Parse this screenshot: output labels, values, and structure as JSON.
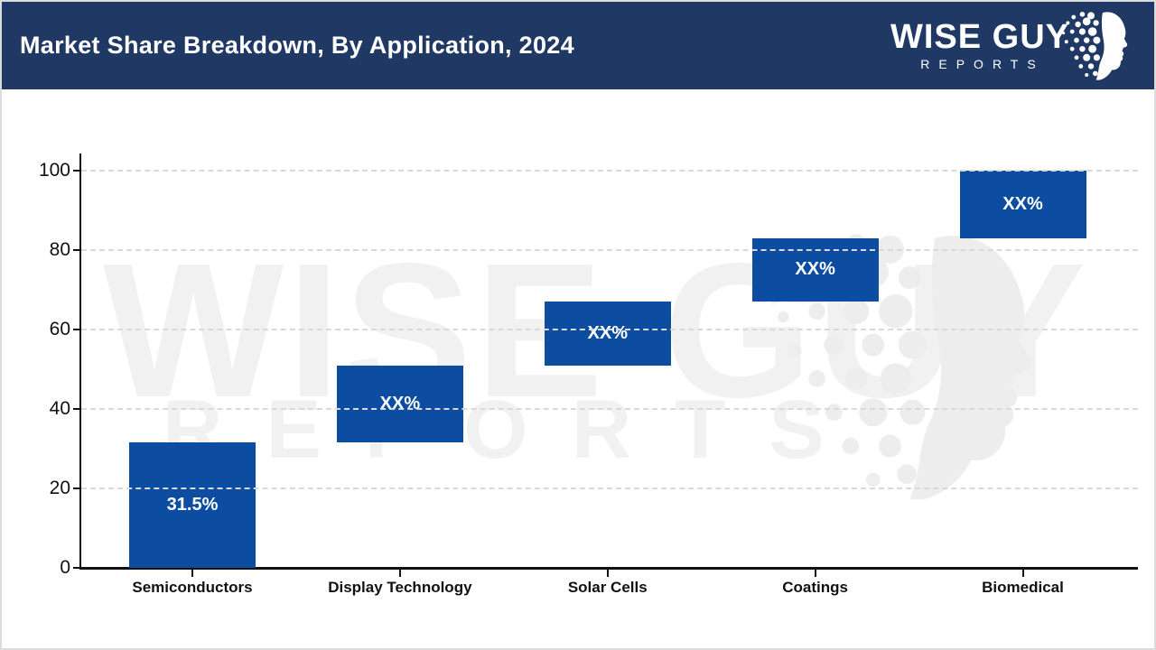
{
  "header": {
    "title": "Market Share Breakdown, By Application, 2024",
    "background": "#203864",
    "logo": {
      "line1": "WISE GUY",
      "line2": "REPORTS"
    }
  },
  "watermark": {
    "line1": "WISE GUY",
    "line2": "REPORTS"
  },
  "chart_data": {
    "type": "bar",
    "subtype": "waterfall",
    "title": "Market Share Breakdown, By Application, 2024",
    "categories": [
      "Semiconductors",
      "Display Technology",
      "Solar Cells",
      "Coatings",
      "Biomedical"
    ],
    "series": [
      {
        "name": "Market Share",
        "segments": [
          {
            "category": "Semiconductors",
            "start": 0,
            "end": 31.5,
            "label": "31.5%"
          },
          {
            "category": "Display Technology",
            "start": 31.5,
            "end": 51,
            "label": "XX%"
          },
          {
            "category": "Solar Cells",
            "start": 51,
            "end": 67,
            "label": "XX%"
          },
          {
            "category": "Coatings",
            "start": 67,
            "end": 83,
            "label": "XX%"
          },
          {
            "category": "Biomedical",
            "start": 83,
            "end": 100,
            "label": "XX%"
          }
        ]
      }
    ],
    "xlabel": "",
    "ylabel": "",
    "ylim": [
      0,
      100
    ],
    "yticks": [
      0,
      20,
      40,
      60,
      80,
      100
    ],
    "grid": "horizontal-dashed",
    "legend": "none",
    "bar_color": "#0d4da1",
    "bar_label_color": "#ffffff",
    "axis_color": "#111111",
    "gridline_color": "#d9d9d9"
  }
}
